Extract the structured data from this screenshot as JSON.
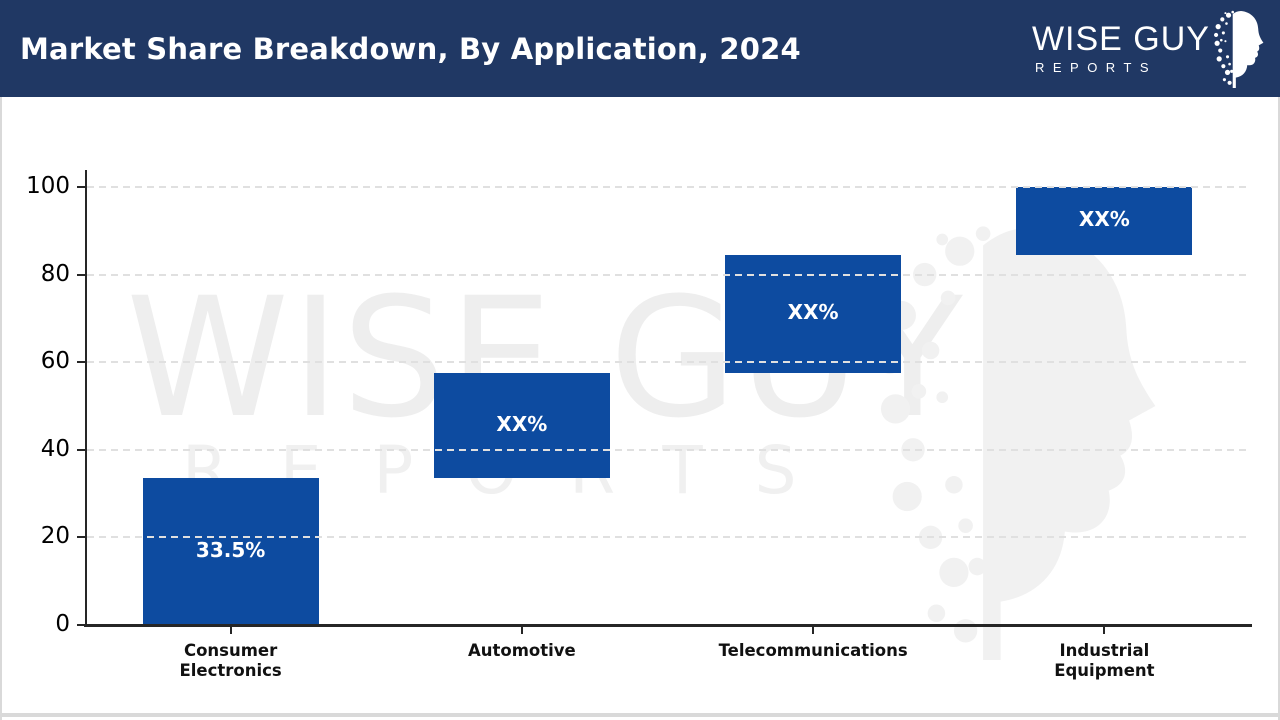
{
  "header": {
    "title": "Market Share Breakdown, By Application, 2024",
    "logo": {
      "name": "WISE GUY",
      "subname": "REPORTS"
    }
  },
  "watermark": {
    "name": "WISE GUY",
    "subname": "REPORTS"
  },
  "chart_data": {
    "type": "bar",
    "subtype": "waterfall",
    "title": "Market Share Breakdown, By Application, 2024",
    "categories": [
      "Consumer Electronics",
      "Automotive",
      "Telecommunications",
      "Industrial Equipment"
    ],
    "category_lines": [
      [
        "Consumer",
        "Electronics"
      ],
      [
        "Automotive"
      ],
      [
        "Telecommunications"
      ],
      [
        "Industrial",
        "Equipment"
      ]
    ],
    "segments": [
      {
        "category": "Consumer Electronics",
        "start": 0,
        "end": 33.5,
        "label": "33.5%"
      },
      {
        "category": "Automotive",
        "start": 33.5,
        "end": 57.5,
        "label": "XX%"
      },
      {
        "category": "Telecommunications",
        "start": 57.5,
        "end": 84.5,
        "label": "XX%"
      },
      {
        "category": "Industrial Equipment",
        "start": 84.5,
        "end": 100,
        "label": "XX%"
      }
    ],
    "ylim": [
      0,
      100
    ],
    "yticks": [
      0,
      20,
      40,
      60,
      80,
      100
    ],
    "xlabel": "",
    "ylabel": "",
    "legend": "none",
    "grid": {
      "horizontal": true,
      "style": "dashed"
    },
    "colors": {
      "bar": "#0D4BA0",
      "bar_label": "#FFFFFF",
      "header_bg": "#203864",
      "grid": "#E0E0E0",
      "axis": "#262626",
      "watermark": "#EEEEEE",
      "border": "#D9D9D9"
    }
  }
}
